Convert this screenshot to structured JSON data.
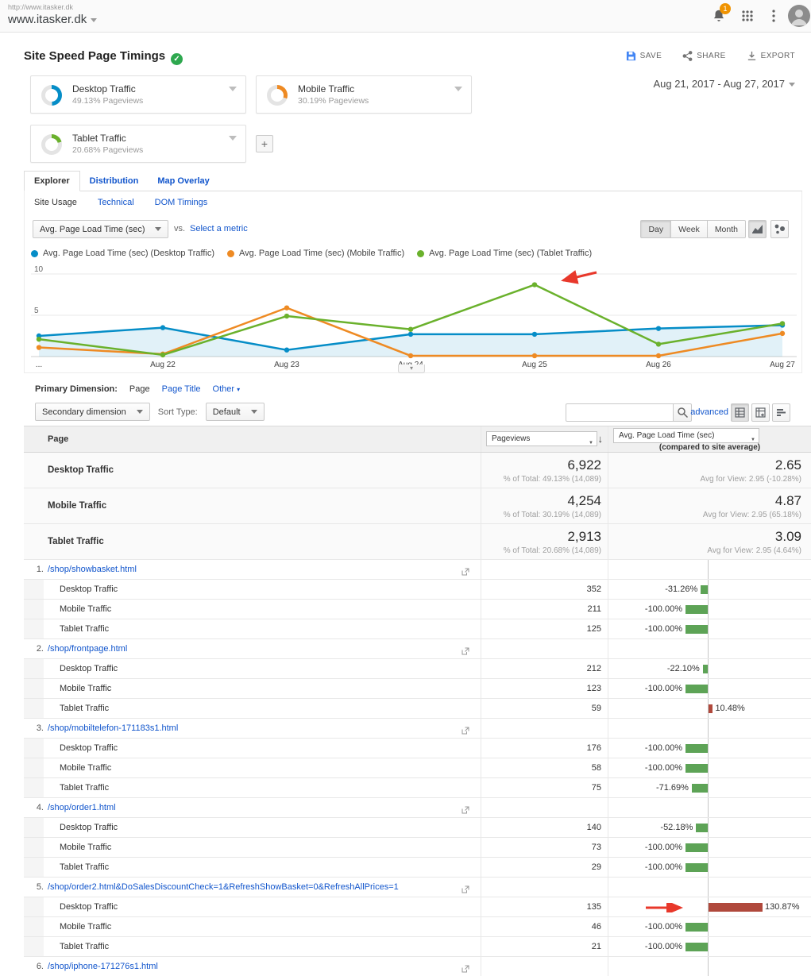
{
  "topbar": {
    "url": "http://www.itasker.dk",
    "account": "www.itasker.dk",
    "notification_count": "1"
  },
  "report": {
    "title": "Site Speed Page Timings",
    "actions": [
      {
        "label": "SAVE"
      },
      {
        "label": "SHARE"
      },
      {
        "label": "EXPORT"
      }
    ],
    "date_range": "Aug 21, 2017 - Aug 27, 2017"
  },
  "segments": {
    "cards": [
      {
        "name": "Desktop Traffic",
        "detail": "49.13% Pageviews",
        "pct": 49.13,
        "color": "#058dc7"
      },
      {
        "name": "Mobile Traffic",
        "detail": "30.19% Pageviews",
        "pct": 30.19,
        "color": "#ee8a23"
      },
      {
        "name": "Tablet Traffic",
        "detail": "20.68% Pageviews",
        "pct": 20.68,
        "color": "#6ab12c"
      }
    ],
    "add_button": "+"
  },
  "tabs": [
    {
      "label": "Explorer",
      "active": true
    },
    {
      "label": "Distribution",
      "active": false
    },
    {
      "label": "Map Overlay",
      "active": false
    }
  ],
  "subtabs": [
    {
      "label": "Site Usage",
      "active": true
    },
    {
      "label": "Technical",
      "active": false
    },
    {
      "label": "DOM Timings",
      "active": false
    }
  ],
  "metric_bar": {
    "metric_select": "Avg. Page Load Time (sec)",
    "vs_label": "vs.",
    "select_metric_link": "Select a metric",
    "granularity": [
      {
        "label": "Day",
        "active": true
      },
      {
        "label": "Week",
        "active": false
      },
      {
        "label": "Month",
        "active": false
      }
    ]
  },
  "chart_data": {
    "type": "line",
    "x": [
      "Aug 21",
      "Aug 22",
      "Aug 23",
      "Aug 24",
      "Aug 25",
      "Aug 26",
      "Aug 27"
    ],
    "x_tick_labels": [
      "...",
      "Aug 22",
      "Aug 23",
      "Aug 24",
      "Aug 25",
      "Aug 26",
      "Aug 27"
    ],
    "ylim": [
      0,
      10
    ],
    "yticks": [
      5,
      10
    ],
    "grid": "horizontal",
    "legend_position": "top",
    "series": [
      {
        "name": "Avg. Page Load Time (sec) (Desktop Traffic)",
        "color": "#058dc7",
        "fill": true,
        "values": [
          2.5,
          3.5,
          0.8,
          2.7,
          2.7,
          3.4,
          3.8
        ]
      },
      {
        "name": "Avg. Page Load Time (sec) (Mobile Traffic)",
        "color": "#ee8a23",
        "fill": false,
        "values": [
          1.1,
          0.3,
          5.9,
          0.1,
          0.1,
          0.1,
          2.8
        ]
      },
      {
        "name": "Avg. Page Load Time (sec) (Tablet Traffic)",
        "color": "#6ab12c",
        "fill": false,
        "values": [
          2.1,
          0.2,
          4.9,
          3.3,
          8.7,
          1.5,
          4.0
        ]
      }
    ],
    "annotation": "red arrow pointing at Tablet Traffic peak on Aug 25"
  },
  "dimension_bar": {
    "label": "Primary Dimension:",
    "options": [
      {
        "label": "Page",
        "active": true
      },
      {
        "label": "Page Title",
        "active": false
      },
      {
        "label": "Other",
        "active": false
      }
    ]
  },
  "toolbar": {
    "secondary_dimension": "Secondary dimension",
    "sort_type_label": "Sort Type:",
    "sort_type_value": "Default",
    "search_value": "",
    "advanced_label": "advanced"
  },
  "table": {
    "columns": {
      "page": "Page",
      "pageviews": "Pageviews",
      "metric": "Avg. Page Load Time (sec)",
      "metric_note": "(compared to site average)"
    },
    "summary": [
      {
        "label": "Desktop Traffic",
        "pageviews": "6,922",
        "pageviews_note": "% of Total: 49.13% (14,089)",
        "metric": "2.65",
        "metric_note": "Avg for View: 2.95 (-10.28%)"
      },
      {
        "label": "Mobile Traffic",
        "pageviews": "4,254",
        "pageviews_note": "% of Total: 30.19% (14,089)",
        "metric": "4.87",
        "metric_note": "Avg for View: 2.95 (65.18%)"
      },
      {
        "label": "Tablet Traffic",
        "pageviews": "2,913",
        "pageviews_note": "% of Total: 20.68% (14,089)",
        "metric": "3.09",
        "metric_note": "Avg for View: 2.95 (4.64%)"
      }
    ],
    "rows": [
      {
        "index": "1.",
        "url": "/shop/showbasket.html",
        "segments": [
          {
            "label": "Desktop Traffic",
            "pageviews": "352",
            "delta": "-31.26%",
            "delta_value": -31.26
          },
          {
            "label": "Mobile Traffic",
            "pageviews": "211",
            "delta": "-100.00%",
            "delta_value": -100
          },
          {
            "label": "Tablet Traffic",
            "pageviews": "125",
            "delta": "-100.00%",
            "delta_value": -100
          }
        ]
      },
      {
        "index": "2.",
        "url": "/shop/frontpage.html",
        "segments": [
          {
            "label": "Desktop Traffic",
            "pageviews": "212",
            "delta": "-22.10%",
            "delta_value": -22.1
          },
          {
            "label": "Mobile Traffic",
            "pageviews": "123",
            "delta": "-100.00%",
            "delta_value": -100
          },
          {
            "label": "Tablet Traffic",
            "pageviews": "59",
            "delta": "10.48%",
            "delta_value": 10.48
          }
        ]
      },
      {
        "index": "3.",
        "url": "/shop/mobiltelefon-171183s1.html",
        "segments": [
          {
            "label": "Desktop Traffic",
            "pageviews": "176",
            "delta": "-100.00%",
            "delta_value": -100
          },
          {
            "label": "Mobile Traffic",
            "pageviews": "58",
            "delta": "-100.00%",
            "delta_value": -100
          },
          {
            "label": "Tablet Traffic",
            "pageviews": "75",
            "delta": "-71.69%",
            "delta_value": -71.69
          }
        ]
      },
      {
        "index": "4.",
        "url": "/shop/order1.html",
        "segments": [
          {
            "label": "Desktop Traffic",
            "pageviews": "140",
            "delta": "-52.18%",
            "delta_value": -52.18
          },
          {
            "label": "Mobile Traffic",
            "pageviews": "73",
            "delta": "-100.00%",
            "delta_value": -100
          },
          {
            "label": "Tablet Traffic",
            "pageviews": "29",
            "delta": "-100.00%",
            "delta_value": -100
          }
        ]
      },
      {
        "index": "5.",
        "url": "/shop/order2.html&DoSalesDiscountCheck=1&RefreshShowBasket=0&RefreshAllPrices=1",
        "segments": [
          {
            "label": "Desktop Traffic",
            "pageviews": "135",
            "delta": "130.87%",
            "delta_value": 130.87,
            "arrow": true
          },
          {
            "label": "Mobile Traffic",
            "pageviews": "46",
            "delta": "-100.00%",
            "delta_value": -100
          },
          {
            "label": "Tablet Traffic",
            "pageviews": "21",
            "delta": "-100.00%",
            "delta_value": -100
          }
        ]
      },
      {
        "index": "6.",
        "url": "/shop/iphone-171276s1.html",
        "segments": []
      }
    ]
  },
  "colors": {
    "link_blue": "#1155cc",
    "bar_green": "#5da356",
    "bar_red": "#b0493c",
    "annotation_red": "#e8382b",
    "badge_orange": "#f09300"
  }
}
